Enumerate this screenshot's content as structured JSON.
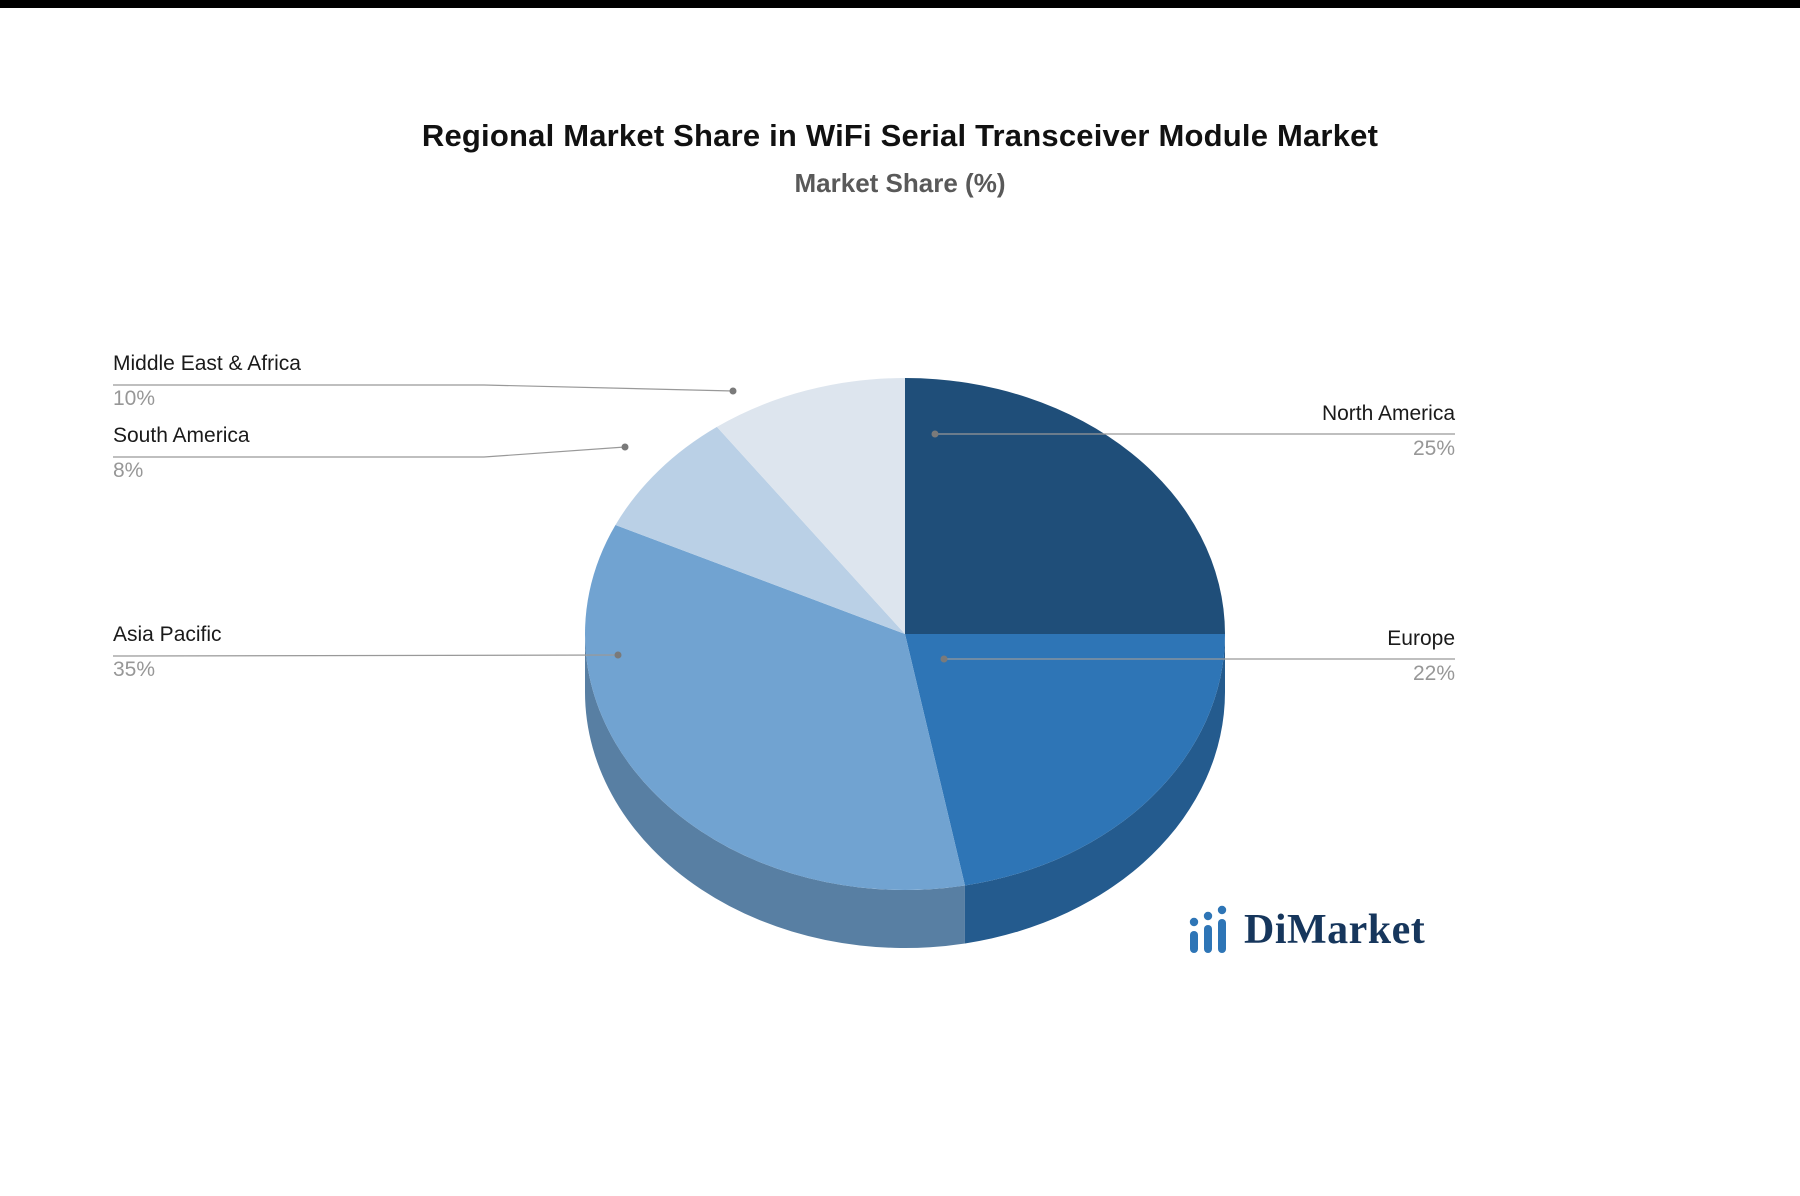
{
  "page": {
    "title": "Regional Market Share in WiFi Serial Transceiver Module Market",
    "subtitle": "Market Share (%)"
  },
  "brand": {
    "name": "DiMarket",
    "icon": "bar-chart-icon",
    "text_color": "#16365c",
    "icon_color": "#2e75b6"
  },
  "chart_data": {
    "type": "pie",
    "title": "Regional Market Share in WiFi Serial Transceiver Module Market",
    "subtitle": "Market Share (%)",
    "unit": "%",
    "effect": "3d",
    "start_angle_deg": 0,
    "direction": "clockwise",
    "legend_position": "callout-labels",
    "slices": [
      {
        "label": "North America",
        "value": 25,
        "display": "25%",
        "color": "#1f4e79",
        "side": "right"
      },
      {
        "label": "Europe",
        "value": 22,
        "display": "22%",
        "color": "#2e75b6",
        "side": "right"
      },
      {
        "label": "Asia Pacific",
        "value": 35,
        "display": "35%",
        "color": "#71a3d1",
        "side": "left"
      },
      {
        "label": "South America",
        "value": 8,
        "display": "8%",
        "color": "#bad0e6",
        "side": "left"
      },
      {
        "label": "Middle East & Africa",
        "value": 10,
        "display": "10%",
        "color": "#dde5ee",
        "side": "left"
      }
    ]
  }
}
